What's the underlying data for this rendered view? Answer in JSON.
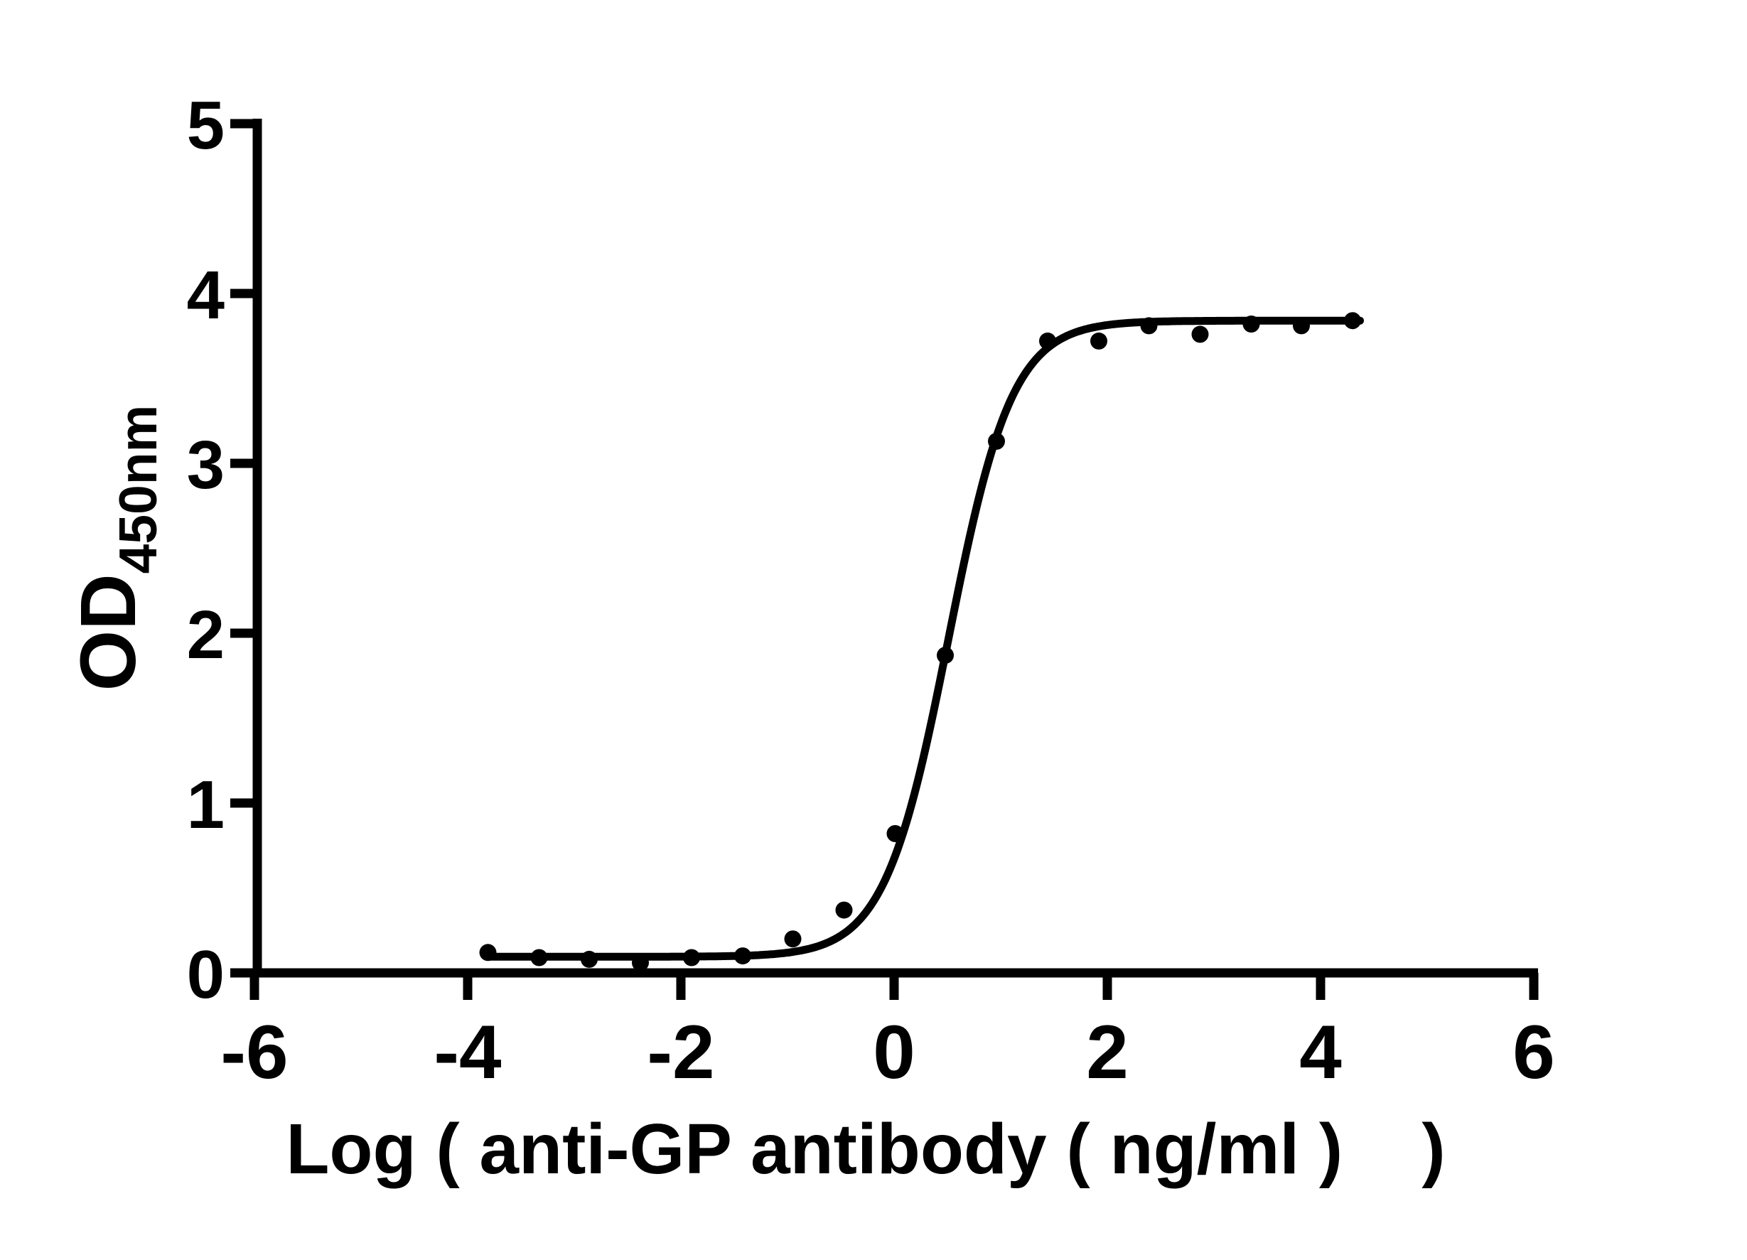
{
  "figure": {
    "background": "#ffffff",
    "ink_color": "#000000"
  },
  "chart_data": {
    "type": "scatter",
    "subtype": "sigmoidal-dose-response-binding-curve",
    "title": "",
    "xlabel": "Log ( anti-GP antibody ( ng/ml )    )",
    "ylabel_main": "OD",
    "ylabel_subscript": "450nm",
    "xlim": [
      -6,
      6
    ],
    "ylim": [
      0,
      5
    ],
    "x_ticks": [
      -6,
      -4,
      -2,
      0,
      2,
      4,
      6
    ],
    "y_ticks": [
      0,
      1,
      2,
      3,
      4,
      5
    ],
    "grid": false,
    "legend_position": "none",
    "marker": "filled-circle",
    "marker_color": "#000000",
    "curve_color": "#000000",
    "points": [
      {
        "x": -3.81,
        "y": 0.12
      },
      {
        "x": -3.33,
        "y": 0.09
      },
      {
        "x": -2.86,
        "y": 0.08
      },
      {
        "x": -2.38,
        "y": 0.06
      },
      {
        "x": -1.9,
        "y": 0.09
      },
      {
        "x": -1.42,
        "y": 0.1
      },
      {
        "x": -0.95,
        "y": 0.2
      },
      {
        "x": -0.47,
        "y": 0.37
      },
      {
        "x": 0.01,
        "y": 0.82
      },
      {
        "x": 0.48,
        "y": 1.87
      },
      {
        "x": 0.96,
        "y": 3.13
      },
      {
        "x": 1.44,
        "y": 3.72
      },
      {
        "x": 1.92,
        "y": 3.72
      },
      {
        "x": 2.39,
        "y": 3.81
      },
      {
        "x": 2.87,
        "y": 3.76
      },
      {
        "x": 3.35,
        "y": 3.82
      },
      {
        "x": 3.82,
        "y": 3.81
      },
      {
        "x": 4.3,
        "y": 3.84
      }
    ],
    "fit_curve": {
      "model": "four-parameter-logistic",
      "bottom": 0.095,
      "top": 3.84,
      "log_ec50": 0.51,
      "hill_slope": 1.45,
      "x_start": -3.81,
      "x_end": 4.38
    }
  }
}
